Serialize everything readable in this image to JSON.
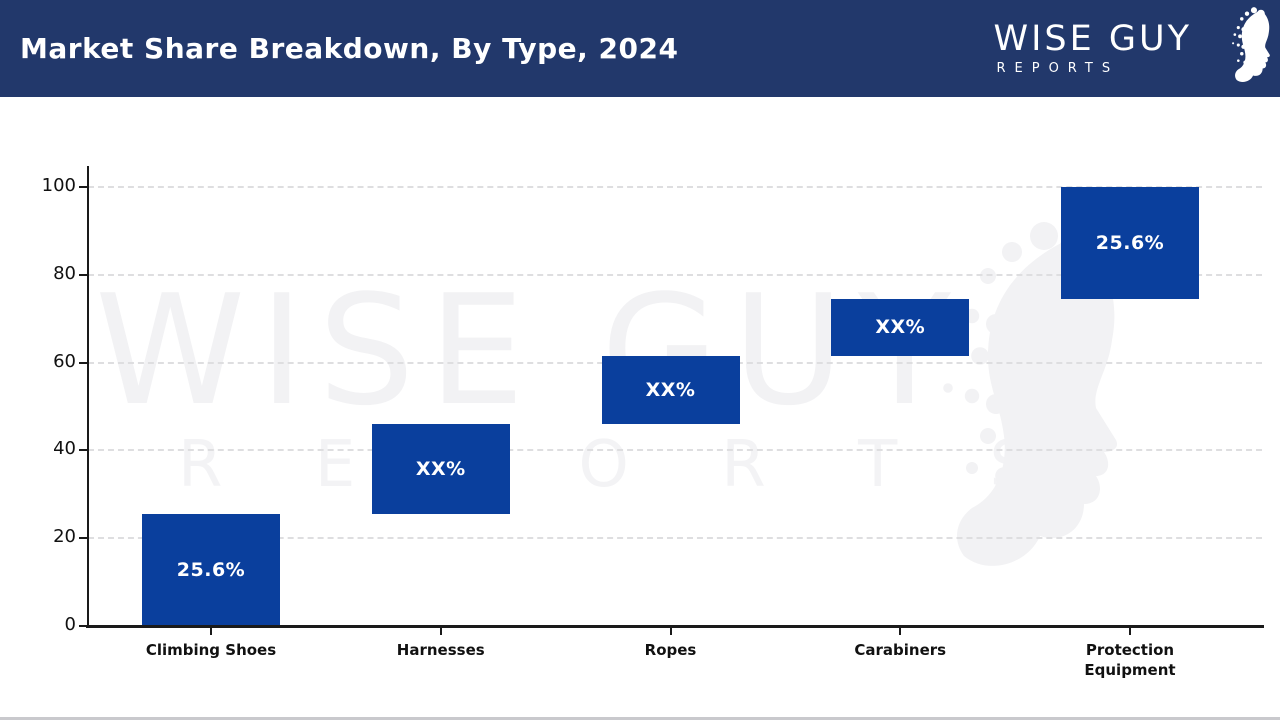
{
  "header": {
    "title": "Market Share Breakdown, By Type, 2024",
    "logo_line1": "WISE GUY",
    "logo_line2": "REPORTS",
    "bg_color": "#22386b"
  },
  "watermark": {
    "line1": "WISE GUY",
    "line2": "R E P O R T S"
  },
  "chart_data": {
    "type": "bar",
    "subtype": "waterfall",
    "title": "Market Share Breakdown, By Type, 2024",
    "categories": [
      "Climbing Shoes",
      "Harnesses",
      "Ropes",
      "Carabiners",
      "Protection Equipment"
    ],
    "bars": [
      {
        "category": "Climbing Shoes",
        "start": 0,
        "end": 25.6,
        "label": "25.6%"
      },
      {
        "category": "Harnesses",
        "start": 25.6,
        "end": 46.0,
        "label": "XX%"
      },
      {
        "category": "Ropes",
        "start": 46.0,
        "end": 61.6,
        "label": "XX%"
      },
      {
        "category": "Carabiners",
        "start": 61.6,
        "end": 74.4,
        "label": "XX%"
      },
      {
        "category": "Protection Equipment",
        "start": 74.4,
        "end": 100,
        "label": "25.6%"
      }
    ],
    "ylabel": "",
    "xlabel": "",
    "ylim": [
      0,
      100
    ],
    "yticks": [
      0,
      20,
      40,
      60,
      80,
      100
    ],
    "grid": "horizontal-dashed",
    "legend": "none",
    "bar_color": "#0a3f9d",
    "bar_label_color": "#ffffff",
    "grid_color": "#dedee0",
    "axis_color": "#1a1a1a"
  }
}
